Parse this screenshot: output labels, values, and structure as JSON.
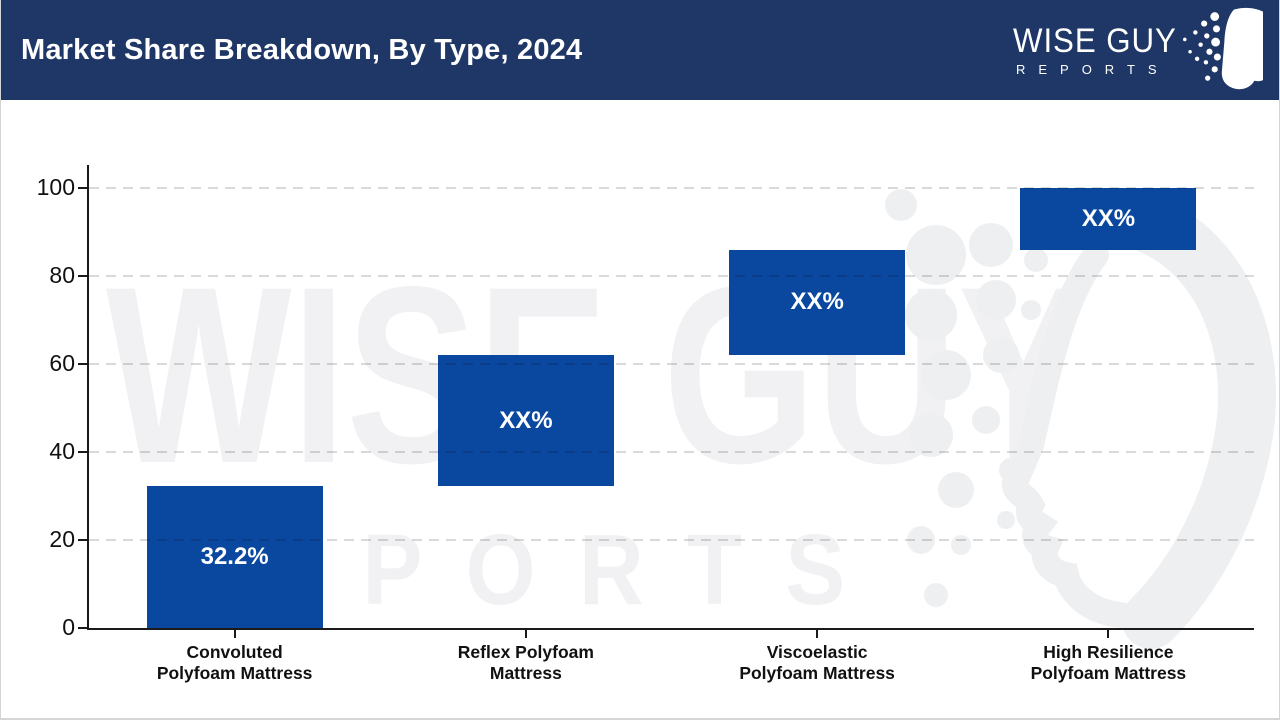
{
  "header": {
    "title": "Market Share Breakdown, By Type, 2024",
    "logo": {
      "wordmark": "WISE GUY",
      "subtext": "REPORTS"
    }
  },
  "watermark": {
    "line1": "WISE GUY",
    "line2": "REPORTS"
  },
  "chart_data": {
    "type": "bar",
    "subtype": "waterfall-stacked-segments",
    "title": "Market Share Breakdown, By Type, 2024",
    "categories": [
      "Convoluted\nPolyfoam Mattress",
      "Reflex Polyfoam\nMattress",
      "Viscoelastic\nPolyfoam Mattress",
      "High Resilience\nPolyfoam Mattress"
    ],
    "segments": [
      {
        "category": "Convoluted Polyfoam Mattress",
        "label": "32.2%",
        "start": 0,
        "end": 32.2
      },
      {
        "category": "Reflex Polyfoam Mattress",
        "label": "XX%",
        "start": 32.2,
        "end": 62
      },
      {
        "category": "Viscoelastic Polyfoam Mattress",
        "label": "XX%",
        "start": 62,
        "end": 86
      },
      {
        "category": "High Resilience Polyfoam Mattress",
        "label": "XX%",
        "start": 86,
        "end": 100
      }
    ],
    "yticks": [
      0,
      20,
      40,
      60,
      80,
      100
    ],
    "ylim": [
      0,
      105
    ],
    "xlabel": "",
    "ylabel": "",
    "grid": "horizontal-dashed",
    "legend": "none",
    "bar_color": "#0a48a0",
    "bar_label_color": "#ffffff"
  },
  "colors": {
    "header_bg": "#1f3766",
    "bar": "#0a48a0",
    "axis": "#1a1a1a",
    "grid": "#d9d9d9",
    "watermark": "#f1f1f3",
    "page_border": "#d5d5d5",
    "tick_label": "#111111",
    "category_label": "#111111"
  }
}
